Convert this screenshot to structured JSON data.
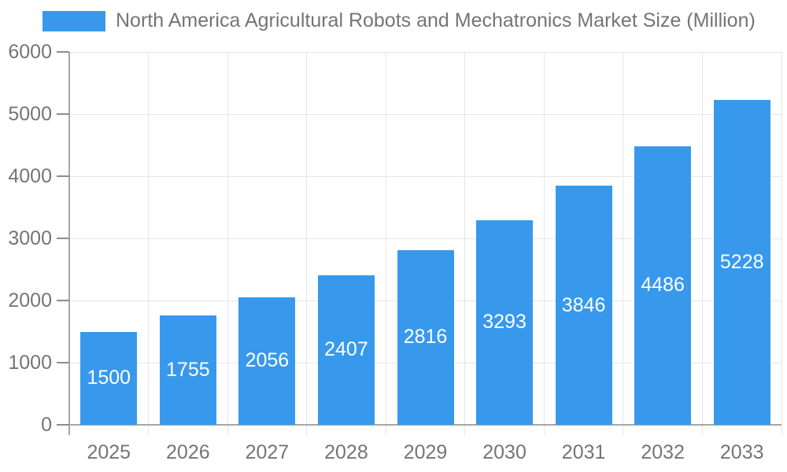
{
  "legend": {
    "label": "North America Agricultural Robots and Mechatronics Market Size (Million)"
  },
  "chart_data": {
    "type": "bar",
    "title": "North America Agricultural Robots and Mechatronics Market Size (Million)",
    "categories": [
      "2025",
      "2026",
      "2027",
      "2028",
      "2029",
      "2030",
      "2031",
      "2032",
      "2033"
    ],
    "values": [
      1500,
      1755,
      2056,
      2407,
      2816,
      3293,
      3846,
      4486,
      5228
    ],
    "series_name": "North America Agricultural Robots and Mechatronics Market Size (Million)",
    "xlabel": "",
    "ylabel": "",
    "ylim": [
      0,
      6000
    ],
    "y_ticks": [
      0,
      1000,
      2000,
      3000,
      4000,
      5000,
      6000
    ],
    "grid": true,
    "legend_position": "top-left",
    "colors": {
      "bar": "#3899EC",
      "bar_label": "#FFFFFF",
      "axis_text": "#757575",
      "gridline": "#E6E6E6",
      "axis_line": "#A6A6A6",
      "tick_mark": "#8C8C8C",
      "background": "#FFFFFF"
    }
  }
}
